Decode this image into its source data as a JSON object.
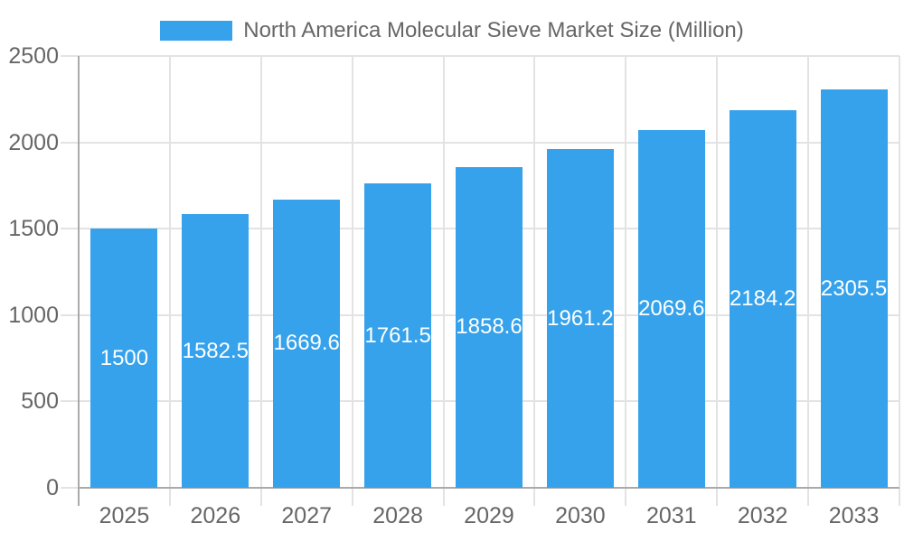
{
  "legend": {
    "label": "North America Molecular Sieve Market Size (Million)"
  },
  "colors": {
    "bar": "#36A2EB",
    "grid": "#E3E3E3",
    "axis": "#AAAAAA",
    "text": "#666666",
    "bar_label": "#FFFFFF",
    "background": "#FFFFFF"
  },
  "chart_data": {
    "type": "bar",
    "title": "North America Molecular Sieve Market Size (Million)",
    "categories": [
      "2025",
      "2026",
      "2027",
      "2028",
      "2029",
      "2030",
      "2031",
      "2032",
      "2033"
    ],
    "values": [
      1500,
      1582.5,
      1669.6,
      1761.5,
      1858.6,
      1961.2,
      2069.6,
      2184.2,
      2305.5
    ],
    "value_labels": [
      "1500",
      "1582.5",
      "1669.6",
      "1761.5",
      "1858.6",
      "1961.2",
      "2069.6",
      "2184.2",
      "2305.5"
    ],
    "xlabel": "",
    "ylabel": "",
    "ylim": [
      0,
      2500
    ],
    "yticks": [
      0,
      500,
      1000,
      1500,
      2000,
      2500
    ],
    "ytick_labels": [
      "0",
      "500",
      "1000",
      "1500",
      "2000",
      "2500"
    ],
    "grid": true,
    "legend_position": "top"
  }
}
